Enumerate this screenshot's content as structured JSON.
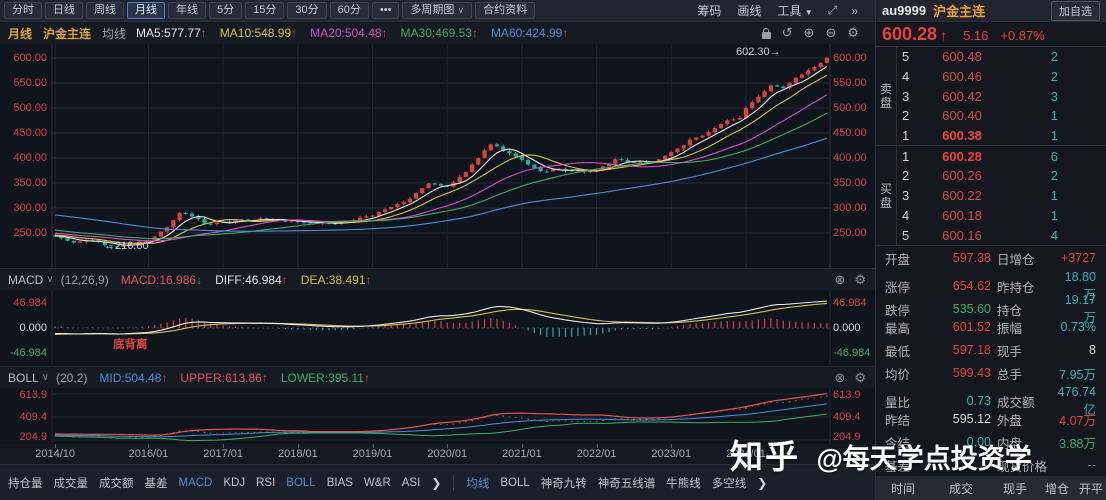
{
  "window": {
    "symbol_code": "au9999",
    "symbol_name": "沪金主连",
    "add_watchlist": "加自选",
    "price": "600.28",
    "arrow": "↑",
    "change": "5.16",
    "change_pct": "+0.87%"
  },
  "icons": {
    "chevron_down": "∨",
    "caret_down": "▼",
    "expand": "⤢",
    "double_chevron": "»",
    "more": "•••",
    "undo": "↺",
    "zoom_in": "⊕",
    "zoom_out": "⊖",
    "settings": "⚙",
    "close": "⊗",
    "up_arrow": "↑",
    "down_arrow": "↓"
  },
  "toolbar": {
    "periods": [
      {
        "label": "分时"
      },
      {
        "label": "日线"
      },
      {
        "label": "周线"
      },
      {
        "label": "月线",
        "active": true
      },
      {
        "label": "年线"
      },
      {
        "label": "5分"
      },
      {
        "label": "15分"
      },
      {
        "label": "30分"
      },
      {
        "label": "60分"
      }
    ],
    "multi_period_label": "多周期图",
    "contract_label": "合约资料",
    "right_tools": [
      {
        "label": "筹码"
      },
      {
        "label": "画线"
      },
      {
        "label": "工具"
      }
    ]
  },
  "legend": {
    "period": "月线",
    "symbol": "沪金主连",
    "ma_title": "均线",
    "ma_items": [
      {
        "text": "MA5:577.77",
        "color": "#e8e8e8"
      },
      {
        "text": "MA10:548.99",
        "color": "#d9c14d"
      },
      {
        "text": "MA20:504.48",
        "color": "#d052c8"
      },
      {
        "text": "MA30:469.53",
        "color": "#44a964"
      },
      {
        "text": "MA60:424.99",
        "color": "#4a90d9"
      }
    ]
  },
  "main_chart": {
    "y_ticks": [
      "600.00",
      "550.00",
      "500.00",
      "450.00",
      "400.00",
      "350.00",
      "300.00",
      "250.00"
    ],
    "high_annotation": "602.30→",
    "low_annotation": "←216.80"
  },
  "macd_pane": {
    "name": "MACD",
    "params": "(12,26,9)",
    "values": [
      {
        "text": "MACD:16.986",
        "color": "#e0565a",
        "arrow": "↓",
        "arrow_color": "#3db063"
      },
      {
        "text": "DIFF:46.984",
        "color": "#e8e8e8",
        "arrow": "↑",
        "arrow_color": "#e0443c"
      },
      {
        "text": "DEA:38.491",
        "color": "#d9c14d",
        "arrow": "↑",
        "arrow_color": "#e0443c"
      }
    ],
    "y_labels": [
      {
        "text": "46.984",
        "cls": "red"
      },
      {
        "text": "0.000",
        "cls": "white"
      },
      {
        "text": "-46.984",
        "cls": "green"
      }
    ],
    "annotation": "底背离"
  },
  "boll_pane": {
    "name": "BOLL",
    "params": "(20,2)",
    "values": [
      {
        "text": "MID:504.48",
        "color": "#4a90d9",
        "arrow": "↑",
        "arrow_color": "#e0443c"
      },
      {
        "text": "UPPER:613.86",
        "color": "#e0565a",
        "arrow": "↑",
        "arrow_color": "#e0443c"
      },
      {
        "text": "LOWER:395.11",
        "color": "#3db063",
        "arrow": "↑",
        "arrow_color": "#e0443c"
      }
    ],
    "y_labels": [
      {
        "text": "613.9",
        "cls": "red"
      },
      {
        "text": "409.4",
        "cls": "red"
      },
      {
        "text": "204.9",
        "cls": "red"
      }
    ]
  },
  "x_axis": {
    "labels": [
      "2014/10",
      "2016/01",
      "2017/01",
      "2018/01",
      "2019/01",
      "2020/01",
      "2021/01",
      "2022/01",
      "2023/01",
      "2024/01"
    ],
    "indices": [
      0,
      15,
      27,
      39,
      51,
      63,
      75,
      87,
      99,
      111
    ]
  },
  "bottom_tabs": {
    "indicators": [
      {
        "label": "持仓量"
      },
      {
        "label": "成交量"
      },
      {
        "label": "成交额"
      },
      {
        "label": "基差"
      },
      {
        "label": "MACD",
        "active": true
      },
      {
        "label": "KDJ"
      },
      {
        "label": "RSI"
      },
      {
        "label": "BOLL",
        "active": true
      },
      {
        "label": "BIAS"
      },
      {
        "label": "W&R"
      },
      {
        "label": "ASI"
      }
    ],
    "indicators_more": "❯",
    "overlays": [
      {
        "label": "均线",
        "active": true
      },
      {
        "label": "BOLL"
      },
      {
        "label": "神奇九转"
      },
      {
        "label": "神奇五线谱"
      },
      {
        "label": "牛熊线"
      },
      {
        "label": "多空线"
      }
    ],
    "overlays_more": "❯"
  },
  "order_book": {
    "sell_label": "卖盘",
    "buy_label": "买盘",
    "sell": [
      {
        "level": "5",
        "price": "600.48",
        "qty": "2"
      },
      {
        "level": "4",
        "price": "600.46",
        "qty": "2"
      },
      {
        "level": "3",
        "price": "600.42",
        "qty": "3"
      },
      {
        "level": "2",
        "price": "600.40",
        "qty": "1"
      },
      {
        "level": "1",
        "price": "600.38",
        "qty": "1",
        "bold": true
      }
    ],
    "buy": [
      {
        "level": "1",
        "price": "600.28",
        "qty": "6",
        "bold": true
      },
      {
        "level": "2",
        "price": "600.26",
        "qty": "2"
      },
      {
        "level": "3",
        "price": "600.22",
        "qty": "1"
      },
      {
        "level": "4",
        "price": "600.18",
        "qty": "1"
      },
      {
        "level": "5",
        "price": "600.16",
        "qty": "4"
      }
    ]
  },
  "stats": [
    {
      "l1": "开盘",
      "v1": "597.38",
      "c1": "red",
      "l2": "日增仓",
      "v2": "+3727",
      "c2": "red"
    },
    {
      "l1": "涨停",
      "v1": "654.62",
      "c1": "red",
      "l2": "昨持仓",
      "v2": "18.80万",
      "c2": "cyan"
    },
    {
      "l1": "跌停",
      "v1": "535.60",
      "c1": "green",
      "l2": "持仓",
      "v2": "19.17万",
      "c2": "cyan"
    },
    {
      "l1": "最高",
      "v1": "601.52",
      "c1": "red",
      "l2": "振幅",
      "v2": "0.73%",
      "c2": "cyan"
    },
    {
      "l1": "最低",
      "v1": "597.18",
      "c1": "red",
      "l2": "现手",
      "v2": "8",
      "c2": "white"
    },
    {
      "l1": "均价",
      "v1": "599.43",
      "c1": "red",
      "l2": "总手",
      "v2": "7.95万",
      "c2": "cyan"
    },
    {
      "l1": "量比",
      "v1": "0.73",
      "c1": "cyan",
      "l2": "成交额",
      "v2": "476.74亿",
      "c2": "cyan"
    },
    {
      "l1": "昨结",
      "v1": "595.12",
      "c1": "white",
      "l2": "外盘",
      "v2": "4.07万",
      "c2": "red"
    },
    {
      "l1": "今结",
      "v1": "0.00",
      "c1": "cyan",
      "l2": "内盘",
      "v2": "3.88万",
      "c2": "green"
    },
    {
      "l1": "基差",
      "v1": "--",
      "c1": "gray",
      "l2": "现货价格",
      "v2": "--",
      "c2": "gray"
    }
  ],
  "tape_header": [
    "时间",
    "成交",
    "现手",
    "增仓",
    "开平"
  ],
  "watermark": {
    "brand": "知乎",
    "handle": "@每天学点投资学"
  },
  "chart_data": {
    "type": "candlestick",
    "title": "沪金主连 月线",
    "months": 125,
    "y_ticks": [
      600,
      550,
      500,
      450,
      400,
      350,
      300,
      250
    ],
    "keypoints": [
      [
        0,
        242
      ],
      [
        3,
        232
      ],
      [
        6,
        236
      ],
      [
        9,
        222
      ],
      [
        12,
        228
      ],
      [
        15,
        235
      ],
      [
        18,
        262
      ],
      [
        20,
        292
      ],
      [
        22,
        285
      ],
      [
        24,
        268
      ],
      [
        27,
        272
      ],
      [
        33,
        278
      ],
      [
        39,
        272
      ],
      [
        45,
        268
      ],
      [
        51,
        286
      ],
      [
        57,
        318
      ],
      [
        60,
        348
      ],
      [
        63,
        342
      ],
      [
        66,
        372
      ],
      [
        70,
        428
      ],
      [
        72,
        415
      ],
      [
        75,
        395
      ],
      [
        78,
        372
      ],
      [
        81,
        378
      ],
      [
        84,
        375
      ],
      [
        87,
        374
      ],
      [
        90,
        398
      ],
      [
        93,
        392
      ],
      [
        96,
        393
      ],
      [
        99,
        410
      ],
      [
        102,
        435
      ],
      [
        105,
        452
      ],
      [
        108,
        475
      ],
      [
        110,
        480
      ],
      [
        111,
        500
      ],
      [
        113,
        522
      ],
      [
        115,
        545
      ],
      [
        117,
        540
      ],
      [
        119,
        560
      ],
      [
        121,
        575
      ],
      [
        123,
        590
      ],
      [
        124,
        600.28
      ]
    ],
    "pre_keypoints": [
      [
        -60,
        318
      ],
      [
        -48,
        338
      ],
      [
        -36,
        298
      ],
      [
        -24,
        266
      ],
      [
        -12,
        250
      ],
      [
        -1,
        244
      ]
    ],
    "low": {
      "index": 9,
      "value": 216.8
    },
    "high": {
      "index": 124,
      "value": 602.3
    },
    "last_close": 600.28,
    "ma_values": {
      "MA5": 577.77,
      "MA10": 548.99,
      "MA20": 504.48,
      "MA30": 469.53,
      "MA60": 424.99
    },
    "macd": {
      "MACD": 16.986,
      "DIFF": 46.984,
      "DEA": 38.491,
      "range": 46.984
    },
    "boll": {
      "MID": 504.48,
      "UPPER": 613.86,
      "LOWER": 395.11,
      "ticks": [
        613.9,
        409.4,
        204.9
      ]
    },
    "colors": {
      "up": "#d8433f",
      "down": "#2fa8a0",
      "ma5": "#e8e8e8",
      "ma10": "#d9c14d",
      "ma20": "#d052c8",
      "ma30": "#44a964",
      "ma60": "#4a90d9",
      "diff_line": "#e8e8e8",
      "dea_line": "#d9c14d",
      "hist_up": "#d8433f",
      "hist_down": "#2fa8a0",
      "boll_upper": "#e05555",
      "boll_mid": "#4a90d9",
      "boll_lower": "#3db063",
      "grid": "#232a36",
      "axis_red": "#d84444"
    }
  }
}
